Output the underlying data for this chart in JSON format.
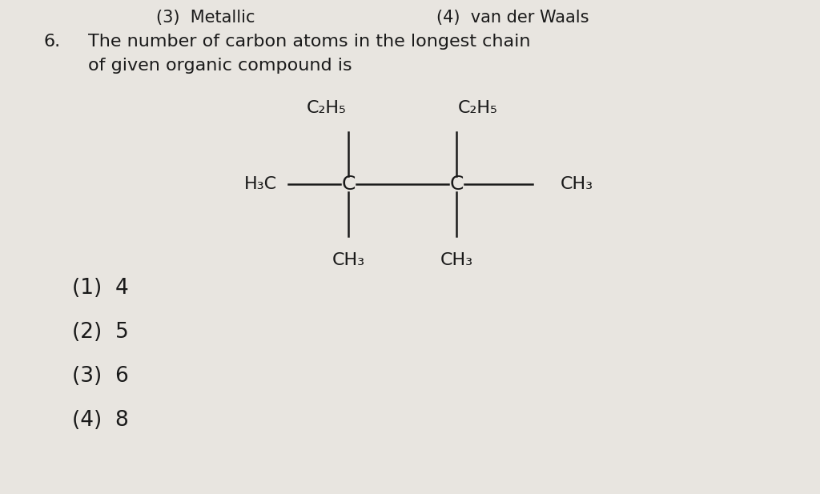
{
  "bg_color": "#e8e5e0",
  "text_color": "#1a1a1a",
  "fig_width": 10.24,
  "fig_height": 6.17,
  "header_metallic": "(3)  Metallic",
  "header_vanderwaals": "(4)  van der Waals",
  "question_number": "6.",
  "question_line1": "The number of carbon atoms in the longest chain",
  "question_line2": "of given organic compound is",
  "options": [
    "(1)  4",
    "(2)  5",
    "(3)  6",
    "(4)  8"
  ],
  "font_size_header": 15,
  "font_size_question": 16,
  "font_size_options": 19,
  "font_size_mol": 16
}
